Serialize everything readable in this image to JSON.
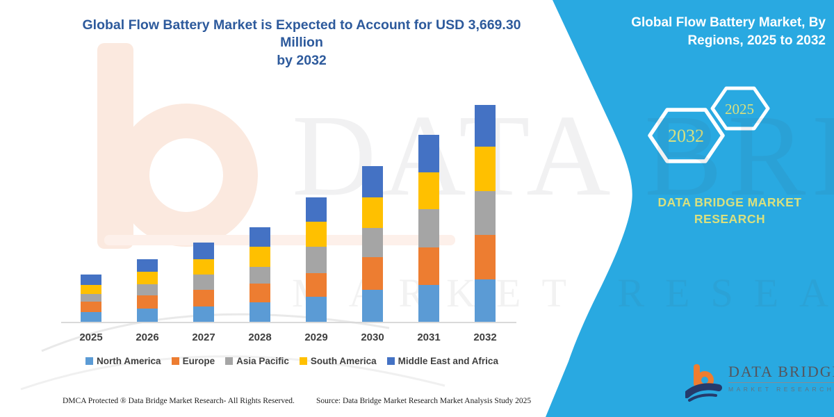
{
  "title": {
    "line1": "Global Flow Battery Market is Expected to Account for USD 3,669.30 Million",
    "line2": "by 2032"
  },
  "sidebar": {
    "title_line1": "Global Flow Battery Market, By",
    "title_line2": "Regions, 2025 to 2032",
    "hex_large_label": "2032",
    "hex_small_label": "2025",
    "brand_line1": "DATA BRIDGE MARKET",
    "brand_line2": "RESEARCH",
    "background_color": "#29a9e1",
    "accent_text_color": "#d9e07f"
  },
  "chart_data": {
    "type": "bar",
    "stacked": true,
    "title": "Global Flow Battery Market is Expected to Account for USD 3,669.30 Million by 2032",
    "unit": "USD Million",
    "categories": [
      "2025",
      "2026",
      "2027",
      "2028",
      "2029",
      "2030",
      "2031",
      "2032"
    ],
    "series": [
      {
        "name": "North America",
        "color": "#5b9bd5",
        "values": [
          170,
          225,
          265,
          329,
          423,
          542,
          629,
          723
        ]
      },
      {
        "name": "Europe",
        "color": "#ed7d31",
        "values": [
          166,
          222,
          277,
          317,
          400,
          554,
          625,
          751
        ]
      },
      {
        "name": "Asia Pacific",
        "color": "#a5a5a5",
        "values": [
          130,
          193,
          261,
          285,
          451,
          494,
          652,
          732
        ]
      },
      {
        "name": "South America",
        "color": "#ffc000",
        "values": [
          158,
          202,
          257,
          336,
          419,
          514,
          625,
          759.3
        ]
      },
      {
        "name": "Middle East and Africa",
        "color": "#4472c4",
        "values": [
          174,
          217,
          277,
          336,
          412,
          534,
          632,
          704
        ]
      }
    ],
    "totals": [
      798,
      1059,
      1337,
      1603,
      2105,
      2638,
      3163,
      3669.3
    ],
    "ylim": [
      0,
      3700
    ],
    "y_axis_visible": false,
    "grid": false,
    "legend_position": "bottom"
  },
  "footer": {
    "left_text": "DMCA Protected ® Data Bridge Market Research-  All Rights Reserved.",
    "source_text": "Source: Data Bridge Market Research  Market Analysis Study 2025"
  },
  "logo": {
    "name": "DATA BRIDGE",
    "subtitle": "MARKET RESEARCH"
  },
  "watermark": {
    "line1": "DATA BRIDGE",
    "line2": "MARKET RESEARCH"
  }
}
